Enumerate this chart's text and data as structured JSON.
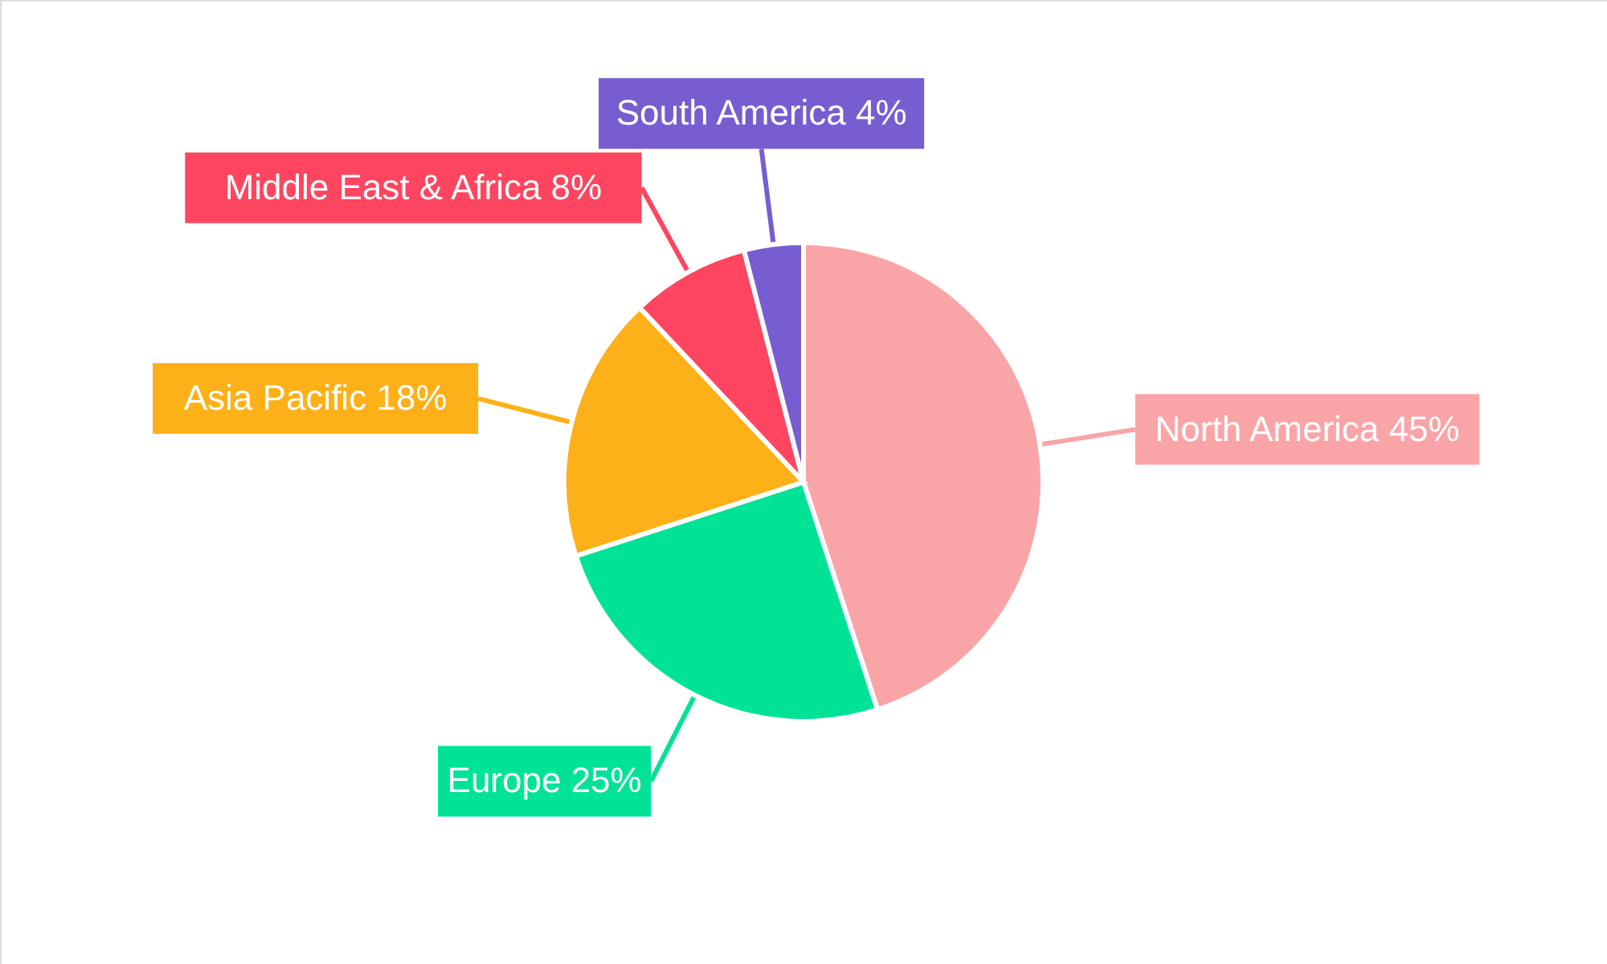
{
  "chart_data": {
    "type": "pie",
    "categories": [
      "North America",
      "Europe",
      "Asia Pacific",
      "Middle East & Africa",
      "South America"
    ],
    "values": [
      45,
      25,
      18,
      8,
      4
    ],
    "colors": [
      "#f9a5a8",
      "#00e396",
      "#feb019",
      "#ff4560",
      "#775dd0"
    ],
    "value_labels": [
      "45%",
      "25%",
      "18%",
      "8%",
      "4%"
    ]
  }
}
